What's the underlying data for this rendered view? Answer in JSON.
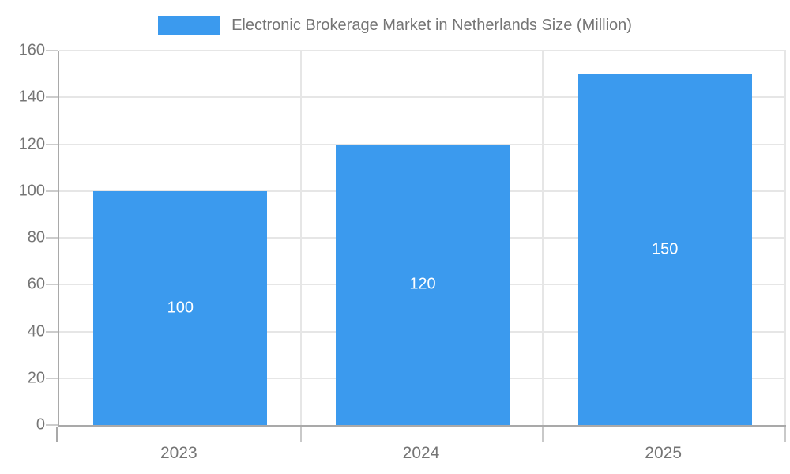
{
  "legend": {
    "label": "Electronic Brokerage Market in Netherlands Size (Million)"
  },
  "colors": {
    "bar": "#3b9aee",
    "axis_line": "#a9a9a9",
    "gridline": "#e6e6e6",
    "tick_text": "#757575",
    "data_label": "#ffffff",
    "background": "#ffffff"
  },
  "chart_data": {
    "type": "bar",
    "title": "Electronic Brokerage Market in Netherlands Size (Million)",
    "categories": [
      "2023",
      "2024",
      "2025"
    ],
    "values": [
      100,
      120,
      150
    ],
    "data_labels": [
      "100",
      "120",
      "150"
    ],
    "xlabel": "",
    "ylabel": "",
    "ylim": [
      0,
      160
    ],
    "yticks": [
      0,
      20,
      40,
      60,
      80,
      100,
      120,
      140,
      160
    ],
    "grid": true,
    "legend_position": "top",
    "data_label_position": "center"
  }
}
